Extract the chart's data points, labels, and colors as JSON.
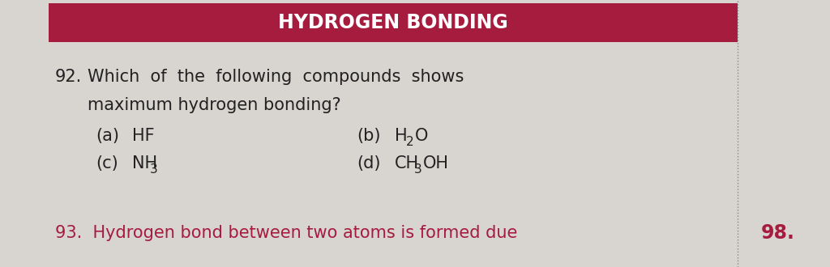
{
  "title": "HYDROGEN BONDING",
  "title_bg_color": "#a51c3e",
  "title_text_color": "#ffffff",
  "bg_color": "#d8d4d0",
  "main_area_color": "#e8e4e0",
  "question_number": "92.",
  "question_text_line1": "Which of the following compounds shows",
  "question_text_line2": "maximum hydrogen bonding?",
  "q93_text": "93.  Hydrogen bond between two atoms is formed due",
  "q93_color": "#a51c3e",
  "page_number": "98.",
  "page_number_color": "#a51c3e",
  "text_color": "#222222",
  "font_size_title": 17,
  "font_size_body": 15,
  "font_size_small": 11,
  "font_size_q93": 15
}
